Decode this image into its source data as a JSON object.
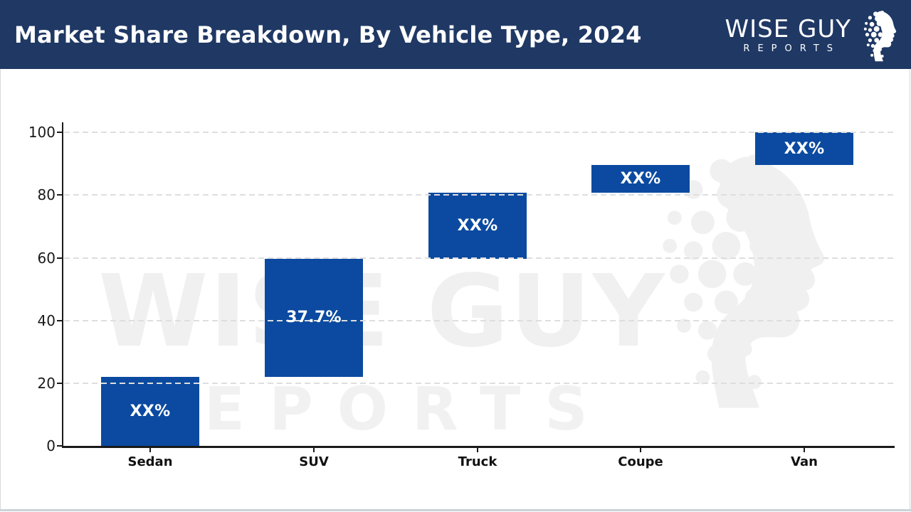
{
  "header": {
    "title": "Market Share Breakdown, By Vehicle Type, 2024",
    "logo": {
      "line1": "WISE GUY",
      "line2": "REPORTS"
    }
  },
  "watermark": {
    "line1": "WISE GUY",
    "line2": "REPORTS"
  },
  "colors": {
    "header_bg": "#1f3864",
    "bar": "#0b4aa0",
    "grid": "#dedede",
    "axis": "#1a1a1a",
    "bar_label_text": "#ffffff",
    "watermark": "#f0f0f0",
    "bottom_strip": "#ccd2da"
  },
  "chart_data": {
    "type": "bar",
    "subtype": "waterfall-cumulative",
    "title": "Market Share Breakdown, By Vehicle Type, 2024",
    "categories": [
      "Sedan",
      "SUV",
      "Truck",
      "Coupe",
      "Van"
    ],
    "segments": [
      [
        0,
        22
      ],
      [
        22,
        59.7
      ],
      [
        59.7,
        80.7
      ],
      [
        80.7,
        89.6
      ],
      [
        89.6,
        100
      ]
    ],
    "bar_labels": [
      "XX%",
      "37.7%",
      "XX%",
      "XX%",
      "XX%"
    ],
    "values_shown": [
      null,
      37.7,
      null,
      null,
      null
    ],
    "y_ticks": [
      0,
      20,
      40,
      60,
      80,
      100
    ],
    "ylim": [
      0,
      103
    ],
    "xlabel": "",
    "ylabel": "",
    "grid": "horizontal-dashed",
    "legend": "none"
  }
}
